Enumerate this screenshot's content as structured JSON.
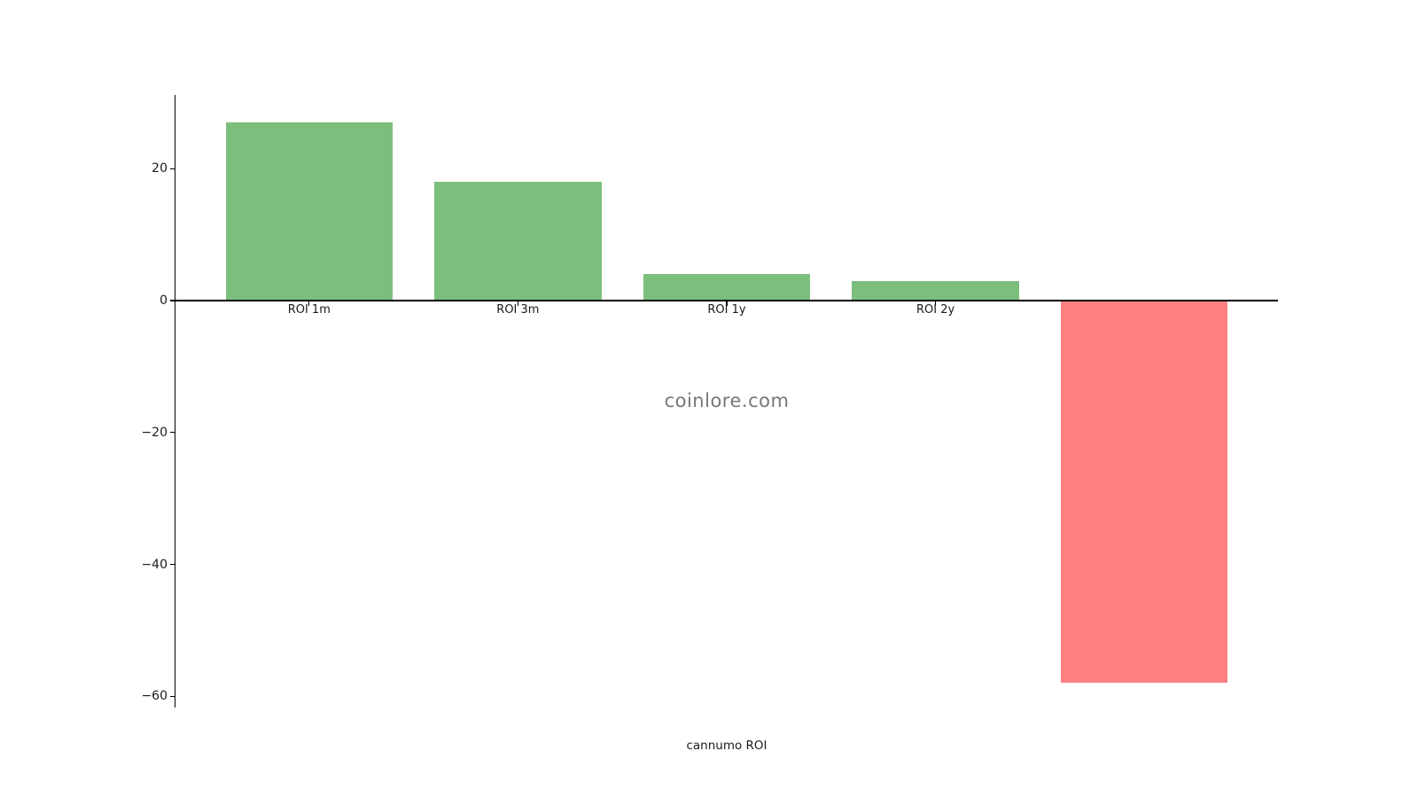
{
  "watermark": {
    "text": "coinlore.com",
    "color": "#777777"
  },
  "chart_data": {
    "type": "bar",
    "title": "",
    "xlabel": "cannumo ROI",
    "ylabel": "",
    "categories": [
      "ROI 1m",
      "ROI 3m",
      "ROI 1y",
      "ROI 2y",
      ""
    ],
    "values": [
      27,
      18,
      4,
      3,
      -58
    ],
    "series": [
      {
        "name": "cannumo ROI %",
        "values": [
          27,
          18,
          4,
          3,
          -58
        ]
      }
    ],
    "positive_color": "#7cbf7d",
    "negative_color": "#ff8080",
    "axis_color": "#000000",
    "text_color": "#1a1a1a",
    "y_ticks": [
      20,
      0,
      -20,
      -40,
      -60
    ],
    "ylim": [
      -61.7,
      31.2
    ],
    "xlim": [
      -0.64,
      4.64
    ],
    "bar_width": 0.8,
    "grid": false,
    "legend_position": "none",
    "baseline": 0
  }
}
